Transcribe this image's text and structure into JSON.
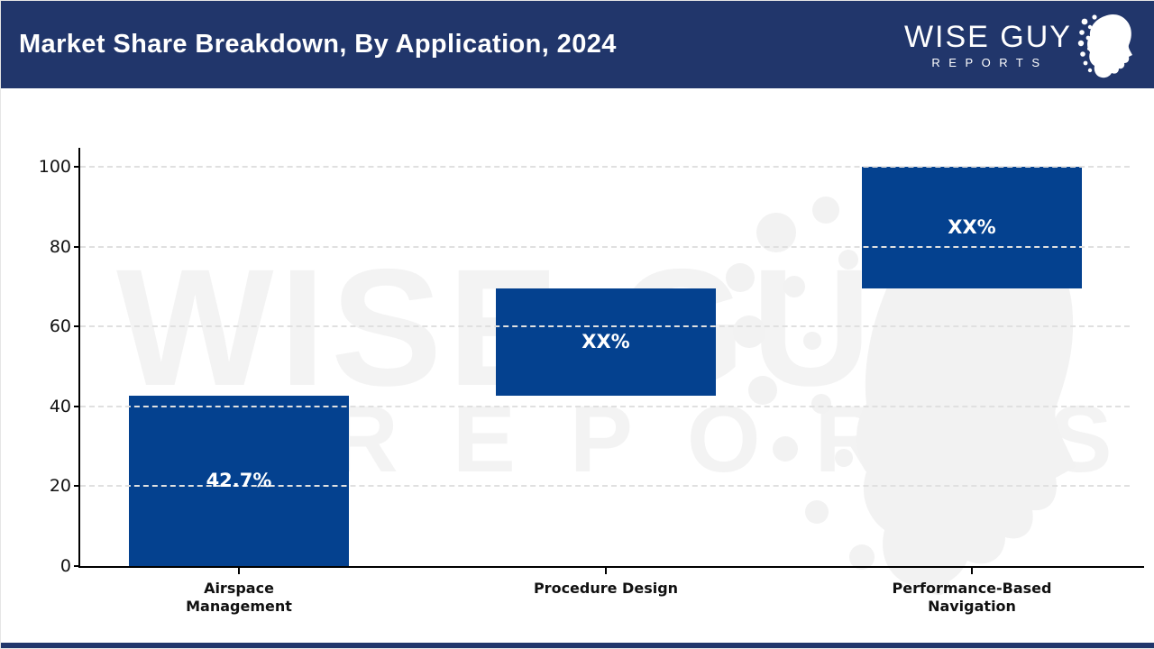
{
  "header": {
    "title": "Market Share Breakdown, By Application, 2024",
    "logo": {
      "primary": "WISE GUY",
      "secondary": "REPORTS"
    }
  },
  "watermark": {
    "primary": "WISE GUY",
    "secondary": "REPORTS"
  },
  "colors": {
    "header_bg": "#21366b",
    "footer_bg": "#21366b",
    "bar_fill": "#04418f",
    "bar_label": "#ffffff",
    "gridline": "#e0e0e0",
    "axis": "#000000",
    "tick_label": "#111111",
    "watermark": "#f3f3f3"
  },
  "chart_data": {
    "type": "bar",
    "subtype": "floating-waterfall-segments",
    "title": "Market Share Breakdown, By Application, 2024",
    "xlabel": "",
    "ylabel": "",
    "ylim": [
      0,
      100
    ],
    "yticks": [
      0,
      20,
      40,
      60,
      80,
      100
    ],
    "grid": "horizontal-dashed",
    "legend": "none",
    "categories": [
      "Airspace Management",
      "Procedure Design",
      "Performance-Based Navigation"
    ],
    "category_lines": [
      [
        "Airspace",
        "Management"
      ],
      [
        "Procedure Design"
      ],
      [
        "Performance-Based",
        "Navigation"
      ]
    ],
    "bars": [
      {
        "category": "Airspace Management",
        "start": 0,
        "end": 42.7,
        "label": "42.7%"
      },
      {
        "category": "Procedure Design",
        "start": 42.7,
        "end": 69.6,
        "label": "XX%"
      },
      {
        "category": "Performance-Based Navigation",
        "start": 69.6,
        "end": 100,
        "label": "XX%"
      }
    ]
  }
}
